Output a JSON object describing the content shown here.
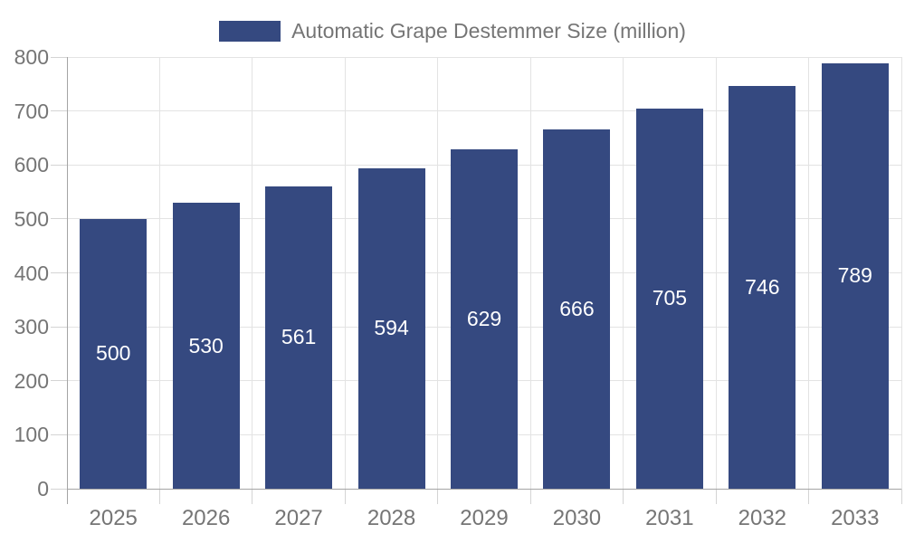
{
  "chart_data": {
    "type": "bar",
    "title": "Automatic Grape Destemmer Size (million)",
    "legend": [
      "Automatic Grape Destemmer Size (million)"
    ],
    "legend_position": "top",
    "categories": [
      "2025",
      "2026",
      "2027",
      "2028",
      "2029",
      "2030",
      "2031",
      "2032",
      "2033"
    ],
    "values": [
      500,
      530,
      561,
      594,
      629,
      666,
      705,
      746,
      789
    ],
    "xlabel": "",
    "ylabel": "",
    "ylim": [
      0,
      800
    ],
    "ytick_step": 100,
    "yticks": [
      0,
      100,
      200,
      300,
      400,
      500,
      600,
      700,
      800
    ],
    "grid": true,
    "value_labels_shown": true,
    "colors": {
      "bar": "#354980",
      "bar_value_text": "#ffffff",
      "axis_text": "#757575",
      "grid_line": "#e3e3e3",
      "tick_line": "#d4d4d4",
      "axis_line": "#a5a5a5",
      "background": "#ffffff"
    }
  }
}
